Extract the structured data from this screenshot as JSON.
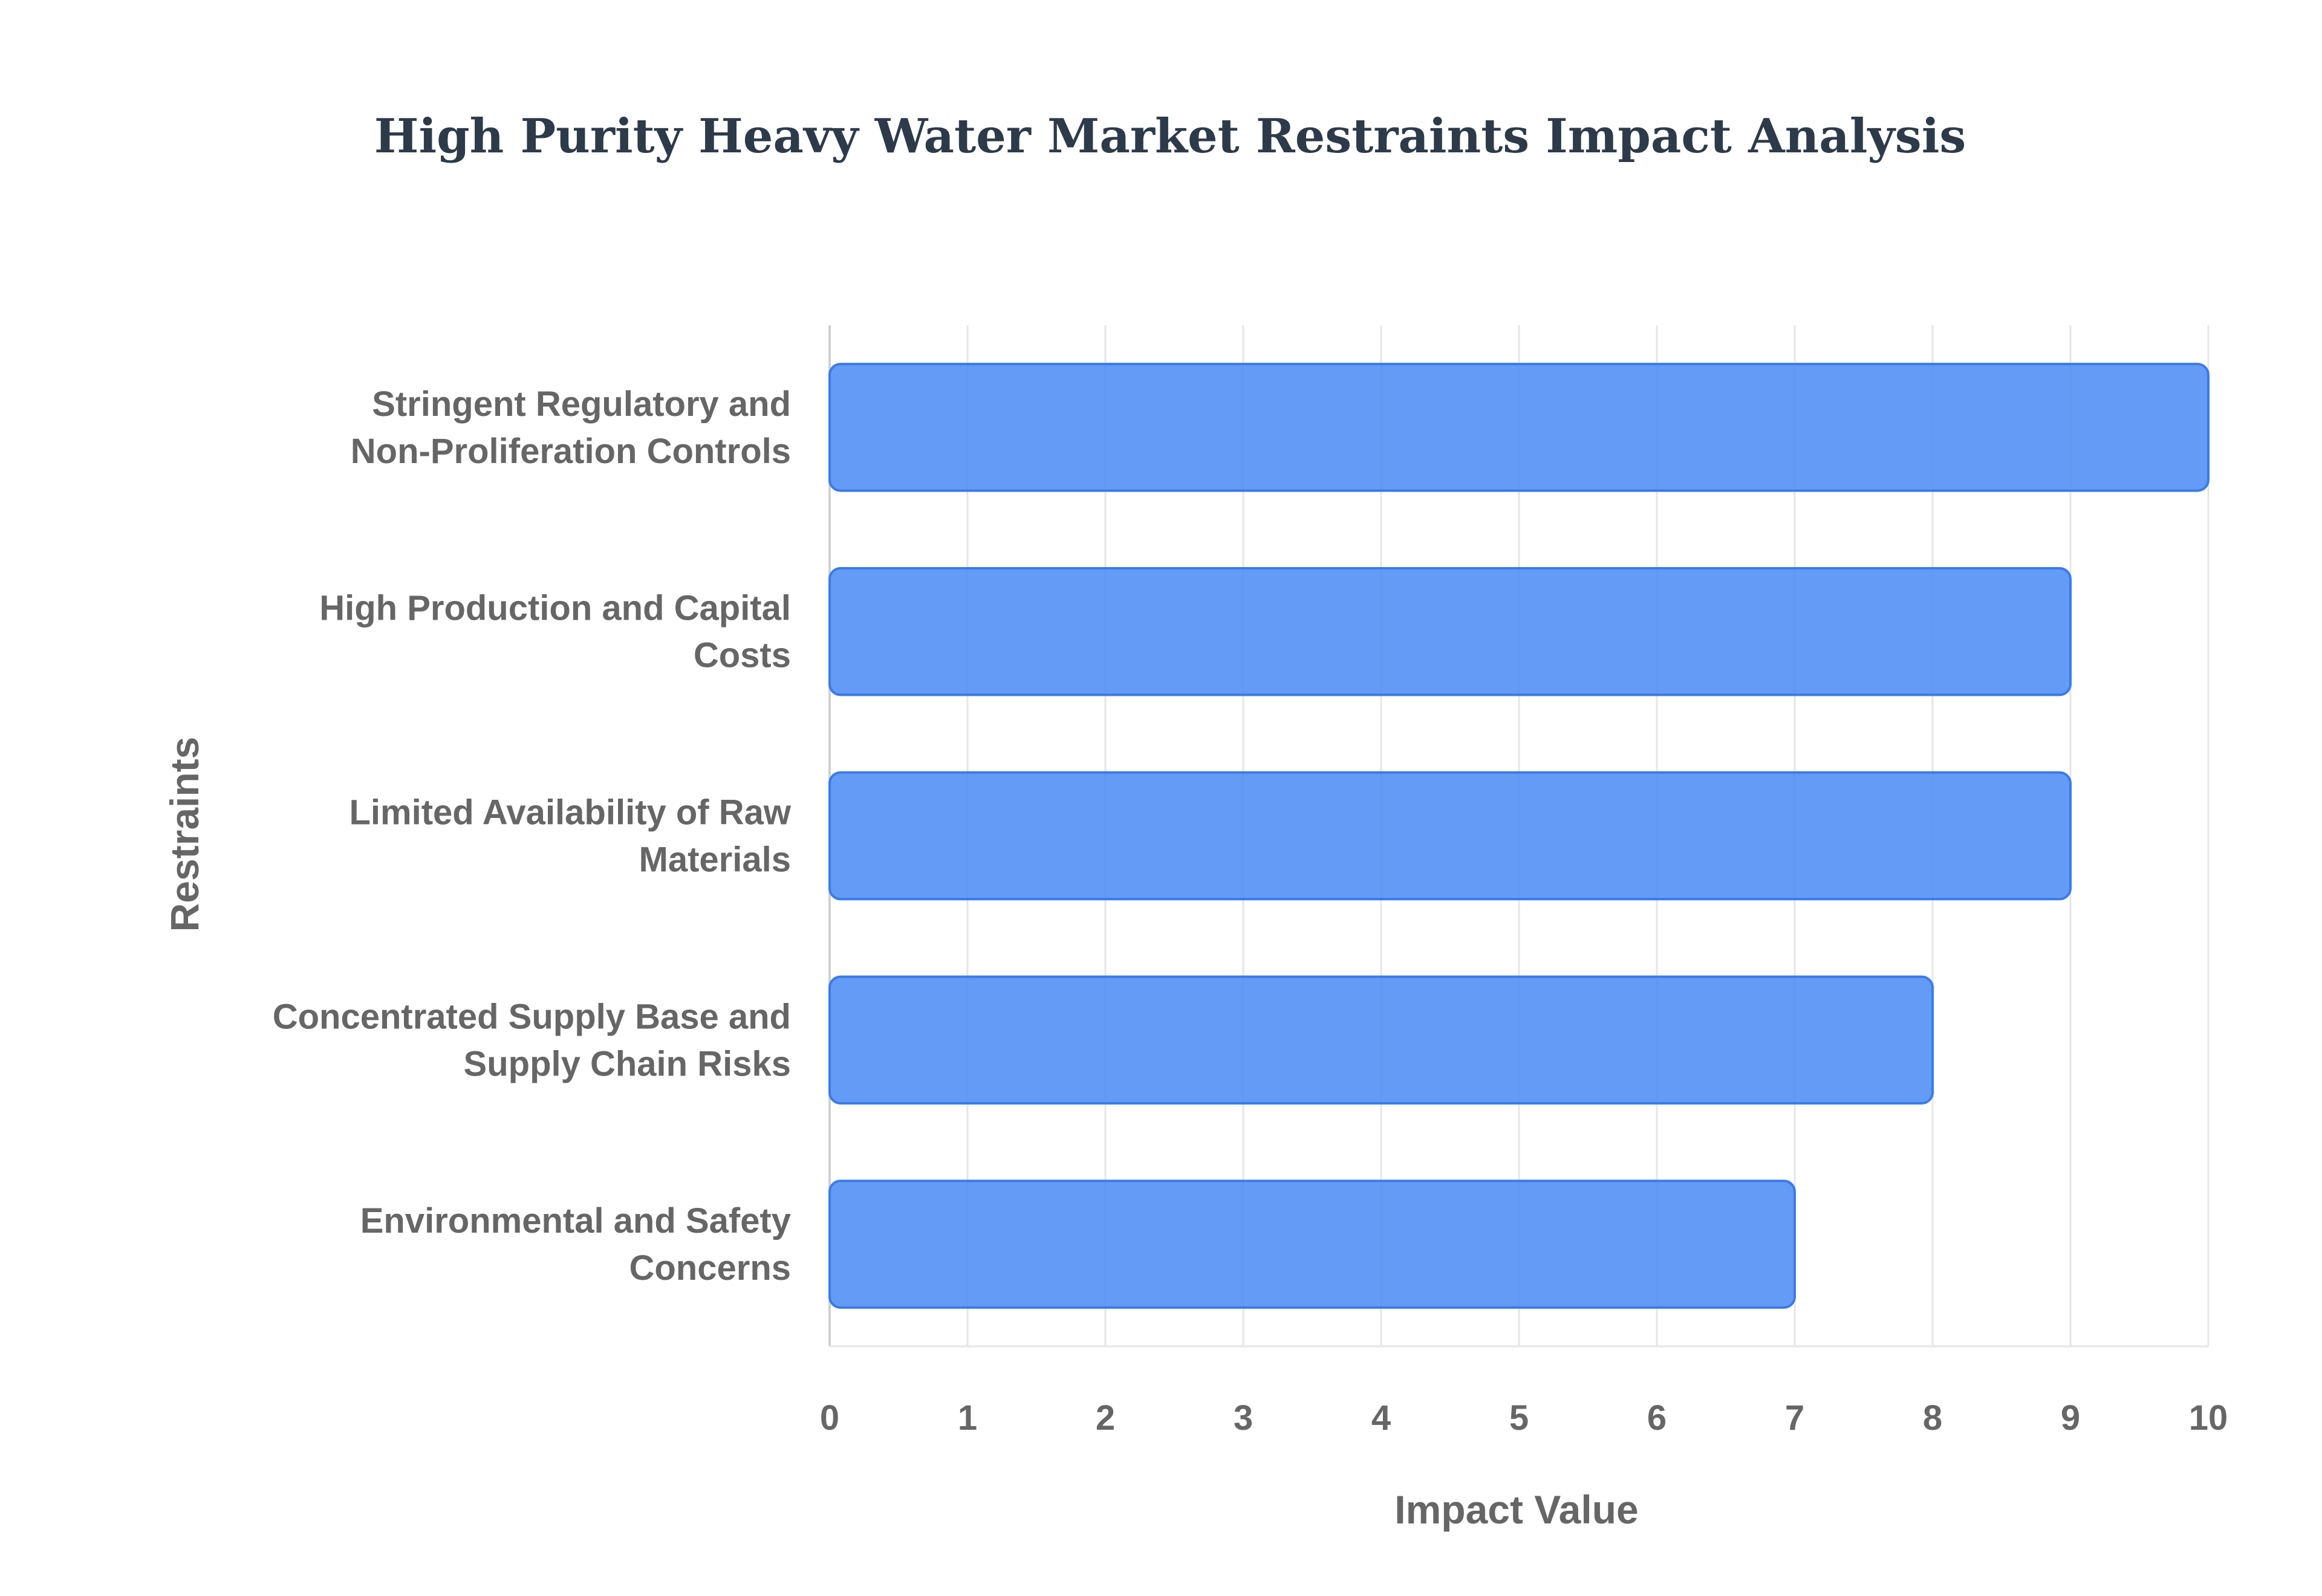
{
  "chart_data": {
    "type": "bar",
    "orientation": "horizontal",
    "title": "High Purity Heavy Water Market Restraints Impact Analysis",
    "xlabel": "Impact Value",
    "ylabel": "Restraints",
    "categories": [
      [
        "Stringent Regulatory and",
        "Non-Proliferation Controls"
      ],
      [
        "High Production and Capital",
        "Costs"
      ],
      [
        "Limited Availability of Raw",
        "Materials"
      ],
      [
        "Concentrated Supply Base and",
        "Supply Chain Risks"
      ],
      [
        "Environmental and Safety",
        "Concerns"
      ]
    ],
    "values": [
      10,
      9,
      9,
      8,
      7
    ],
    "xlim": [
      0,
      10
    ],
    "xticks": [
      "0",
      "1",
      "2",
      "3",
      "4",
      "5",
      "6",
      "7",
      "8",
      "9",
      "10"
    ],
    "grid": true,
    "bar_color": "#4f8df5",
    "bar_border_color": "#3b7be8"
  }
}
